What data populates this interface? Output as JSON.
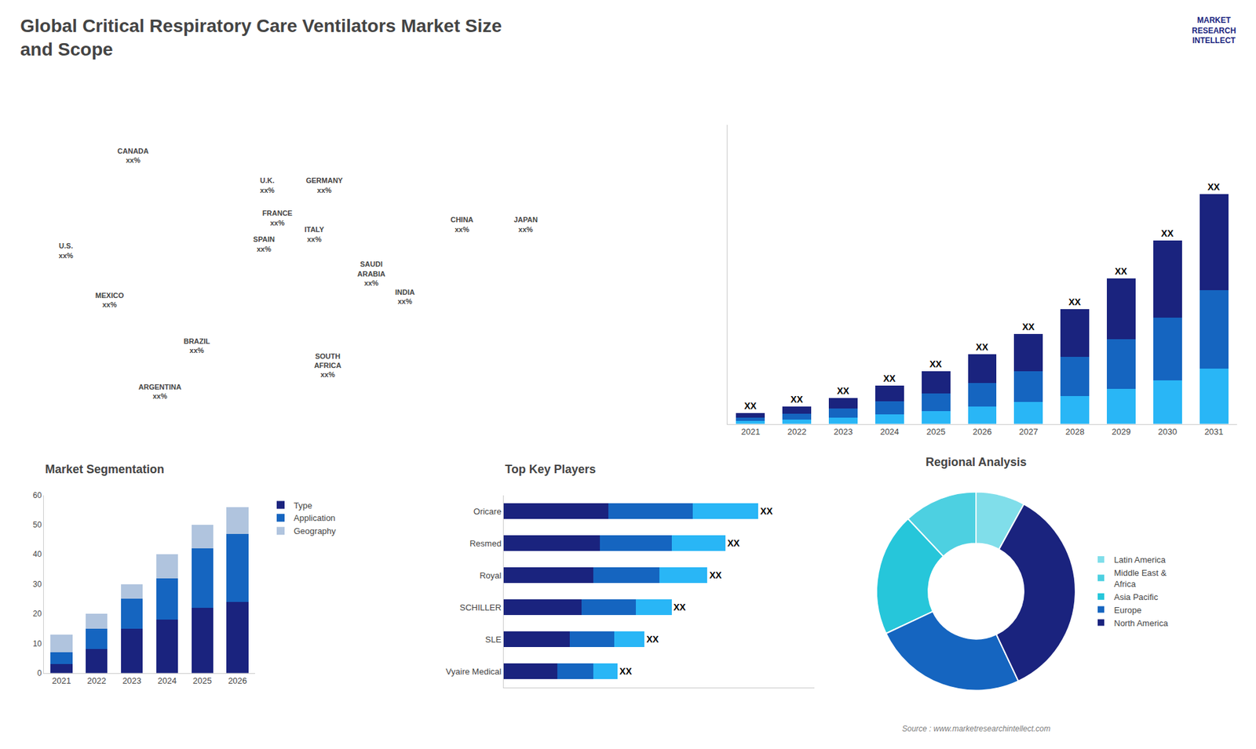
{
  "chart_data": [
    {
      "type": "map",
      "annotations": [
        "CANADA\nxx%",
        "U.S.\nxx%",
        "MEXICO\nxx%",
        "BRAZIL\nxx%",
        "ARGENTINA\nxx%",
        "U.K.\nxx%",
        "FRANCE\nxx%",
        "SPAIN\nxx%",
        "GERMANY\nxx%",
        "ITALY\nxx%",
        "SAUDI\nARABIA\nxx%",
        "SOUTH\nAFRICA\nxx%",
        "CHINA\nxx%",
        "INDIA\nxx%",
        "JAPAN\nxx%"
      ]
    },
    {
      "type": "bar",
      "title": "Global Critical Respiratory Care Ventilators Market Size\nand Scope",
      "annotations": [
        "MARKET\nRESEARCH\nINTELLECT",
        "Source : www.marketresearchintellect.com"
      ],
      "categories": [
        "2021",
        "2022",
        "2023",
        "2024",
        "2025",
        "2026",
        "2027",
        "2028",
        "2029",
        "2030",
        "2031"
      ],
      "series": [
        {
          "color": "#29b6f6",
          "values": [
            1.0,
            1.5,
            2.2,
            3.2,
            4.5,
            6.0,
            7.5,
            9.5,
            12.0,
            15.0,
            19.0
          ]
        },
        {
          "color": "#1565c0",
          "values": [
            1.2,
            2.0,
            3.0,
            4.5,
            6.0,
            8.0,
            10.5,
            13.5,
            17.0,
            21.5,
            27.0
          ]
        },
        {
          "color": "#1a237e",
          "values": [
            1.5,
            2.5,
            3.8,
            5.5,
            7.5,
            10.0,
            13.0,
            16.5,
            21.0,
            26.5,
            33.0
          ]
        }
      ],
      "value_labels": [
        "XX",
        "XX",
        "XX",
        "XX",
        "XX",
        "XX",
        "XX",
        "XX",
        "XX",
        "XX",
        "XX"
      ],
      "stacked": true,
      "ylim": [
        0,
        102.7
      ],
      "tick_labels": "x",
      "grid": false
    },
    {
      "type": "bar",
      "title": "Market Segmentation",
      "categories": [
        "2021",
        "2022",
        "2023",
        "2024",
        "2025",
        "2026"
      ],
      "series": [
        {
          "name": "Type",
          "color": "#1a237e",
          "values": [
            3,
            8,
            15,
            18,
            22,
            24
          ]
        },
        {
          "name": "Application",
          "color": "#1565c0",
          "values": [
            4,
            7,
            10,
            14,
            20,
            23
          ]
        },
        {
          "name": "Geography",
          "color": "#b0c4de",
          "values": [
            6,
            5,
            5,
            8,
            8,
            9
          ]
        }
      ],
      "stacked": true,
      "ylim": [
        0,
        60
      ],
      "yticks": [
        0,
        10,
        20,
        30,
        40,
        50,
        60
      ],
      "legend": "right",
      "grid": false
    },
    {
      "type": "bar",
      "title": "Top Key Players",
      "orientation": "horizontal",
      "categories": [
        "Oricare",
        "Resmed",
        "Royal",
        "SCHILLER",
        "SLE",
        "Vyaire Medical"
      ],
      "series": [
        {
          "color": "#1a237e",
          "values": [
            35,
            32,
            30,
            26,
            22,
            18
          ]
        },
        {
          "color": "#1565c0",
          "values": [
            28,
            24,
            22,
            18,
            15,
            12
          ]
        },
        {
          "color": "#29b6f6",
          "values": [
            22,
            18,
            16,
            12,
            10,
            8
          ]
        }
      ],
      "value_labels": [
        "XX",
        "XX",
        "XX",
        "XX",
        "XX",
        "XX"
      ],
      "stacked": true,
      "xlim": [
        0,
        103.7
      ],
      "tick_labels": "y",
      "grid": false
    },
    {
      "type": "pie",
      "title": "Regional Analysis",
      "categories": [
        "Latin America",
        "Middle East &\nAfrica",
        "Asia Pacific",
        "Europe",
        "North America"
      ],
      "values": [
        8,
        12,
        20,
        25,
        35
      ],
      "colors": [
        "#80deea",
        "#4dd0e1",
        "#26c6da",
        "#1565c0",
        "#1a237e"
      ],
      "legend": "right"
    }
  ]
}
